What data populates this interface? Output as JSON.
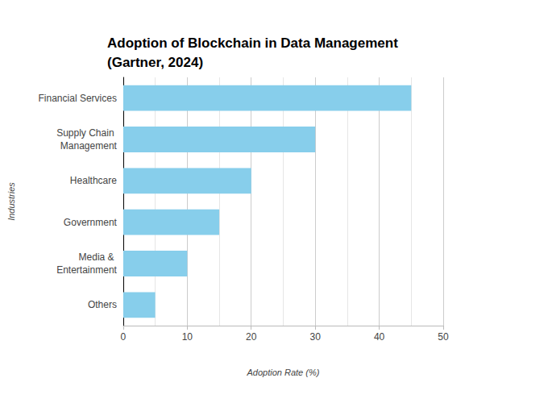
{
  "chart_data": {
    "type": "bar",
    "orientation": "horizontal",
    "title": "Adoption of Blockchain in Data Management (Gartner, 2024)",
    "x_label": "Adoption Rate (%)",
    "y_label": "Industries",
    "categories": [
      "Financial Services",
      "Supply Chain Management",
      "Healthcare",
      "Government",
      "Media & Entertainment",
      "Others"
    ],
    "values": [
      45,
      30,
      20,
      15,
      10,
      5
    ],
    "color": "#87ceeb",
    "xlim": [
      0,
      50
    ],
    "xticks": [
      0,
      10,
      20,
      30,
      40,
      50
    ],
    "grid": true
  }
}
